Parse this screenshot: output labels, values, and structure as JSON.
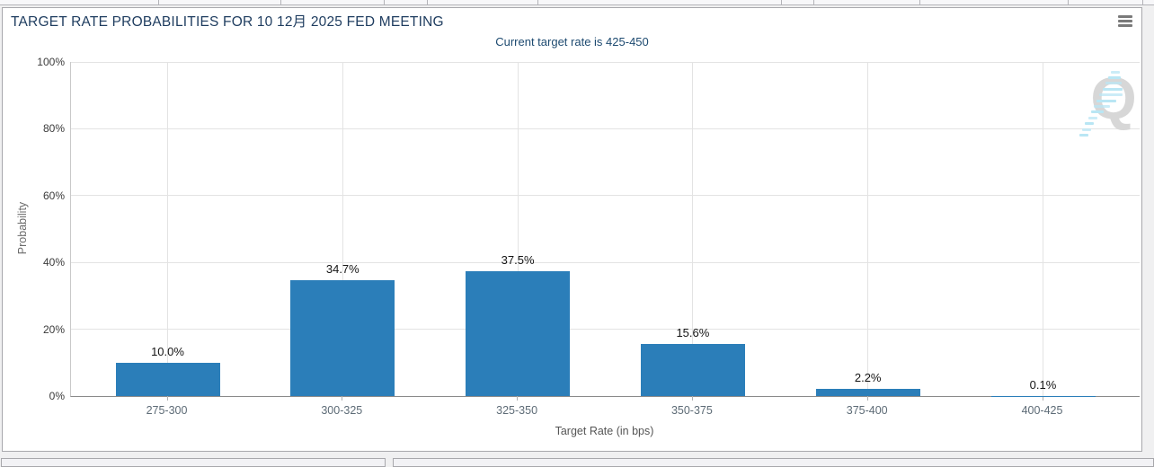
{
  "header": {
    "title": "TARGET RATE PROBABILITIES FOR 10 12月 2025 FED MEETING",
    "menu_icon": "hamburger-icon"
  },
  "watermark": {
    "letter": "Q"
  },
  "chart_data": {
    "type": "bar",
    "title": "TARGET RATE PROBABILITIES FOR 10 12月 2025 FED MEETING",
    "subtitle": "Current target rate is 425-450",
    "categories": [
      "275-300",
      "300-325",
      "325-350",
      "350-375",
      "375-400",
      "400-425"
    ],
    "values": [
      10.0,
      34.7,
      37.5,
      15.6,
      2.2,
      0.1
    ],
    "value_labels": [
      "10.0%",
      "34.7%",
      "37.5%",
      "15.6%",
      "2.2%",
      "0.1%"
    ],
    "xlabel": "Target Rate (in bps)",
    "ylabel": "Probability",
    "ylim": [
      0,
      100
    ],
    "ytick_values": [
      0,
      20,
      40,
      60,
      80,
      100
    ],
    "ytick_labels": [
      "0%",
      "20%",
      "40%",
      "60%",
      "80%",
      "100%"
    ],
    "grid": true,
    "legend": false,
    "bar_color": "#2b7eb9"
  }
}
